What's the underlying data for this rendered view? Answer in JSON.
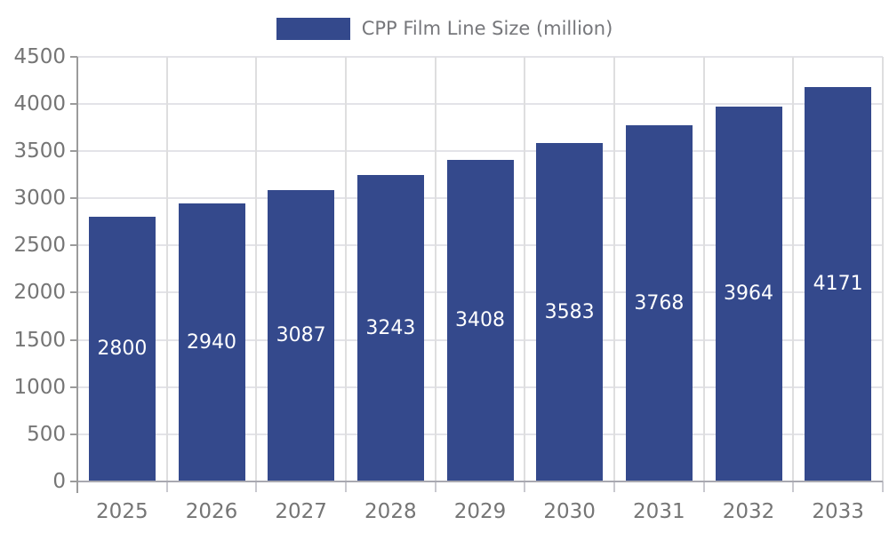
{
  "legend": {
    "label": "CPP Film Line Size (million)"
  },
  "chart_data": {
    "type": "bar",
    "title": "",
    "xlabel": "",
    "ylabel": "",
    "categories": [
      "2025",
      "2026",
      "2027",
      "2028",
      "2029",
      "2030",
      "2031",
      "2032",
      "2033"
    ],
    "values": [
      2800,
      2940,
      3087,
      3243,
      3408,
      3583,
      3768,
      3964,
      4171
    ],
    "series_name": "CPP Film Line Size (million)",
    "ylim": [
      0,
      4500
    ],
    "ytick_step": 500,
    "ytick_labels": [
      "0",
      "500",
      "1000",
      "1500",
      "2000",
      "2500",
      "3000",
      "3500",
      "4000",
      "4500"
    ],
    "grid": "both",
    "legend_position": "top-center",
    "value_labels": "inside-middle",
    "colors": {
      "bar": "#34498c",
      "bar_label": "#ffffff",
      "grid_line": "#e3e3e8",
      "vertical_grid_line": "#dededf",
      "y_axis_line": "#9b9b9b",
      "x_axis_line": "#a8a8b0",
      "tick_label": "#757575",
      "legend_text": "#76777b"
    }
  }
}
